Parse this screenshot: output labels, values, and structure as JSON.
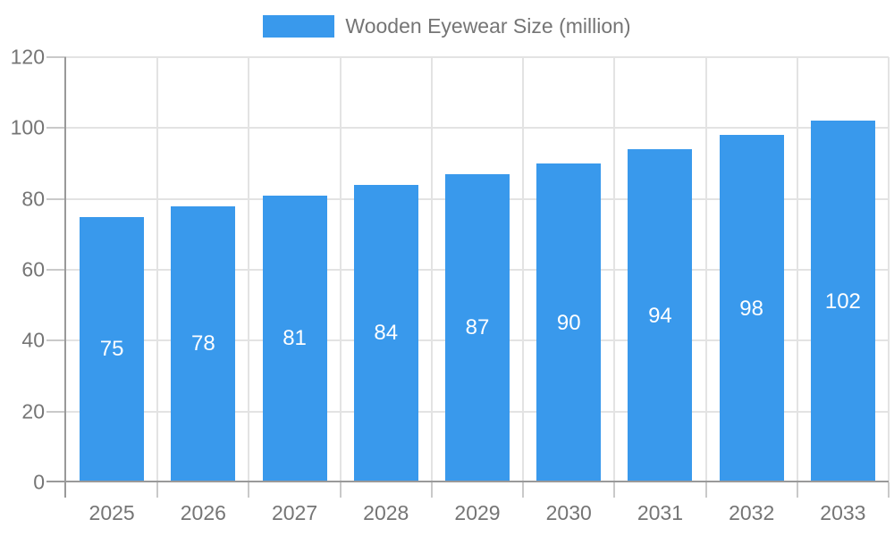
{
  "legend": {
    "label": "Wooden Eyewear Size (million)"
  },
  "colors": {
    "bar": "#3999ec",
    "axis_text": "#757575",
    "grid": "#e3e3e3",
    "tick": "#c9c9c9",
    "axis_line": "#999999",
    "value_label": "#ffffff",
    "background": "#ffffff"
  },
  "chart_data": {
    "type": "bar",
    "title": "",
    "xlabel": "",
    "ylabel": "",
    "categories": [
      "2025",
      "2026",
      "2027",
      "2028",
      "2029",
      "2030",
      "2031",
      "2032",
      "2033"
    ],
    "values": [
      75,
      78,
      81,
      84,
      87,
      90,
      94,
      98,
      102
    ],
    "series_name": "Wooden Eyewear Size (million)",
    "ylim": [
      0,
      120
    ],
    "y_tick_labels": [
      "0",
      "20",
      "40",
      "60",
      "80",
      "100",
      "120"
    ],
    "grid": true,
    "legend_position": "top-center",
    "value_labels_position": "inside-middle",
    "value_labels": [
      "75",
      "78",
      "81",
      "84",
      "87",
      "90",
      "94",
      "98",
      "102"
    ]
  }
}
